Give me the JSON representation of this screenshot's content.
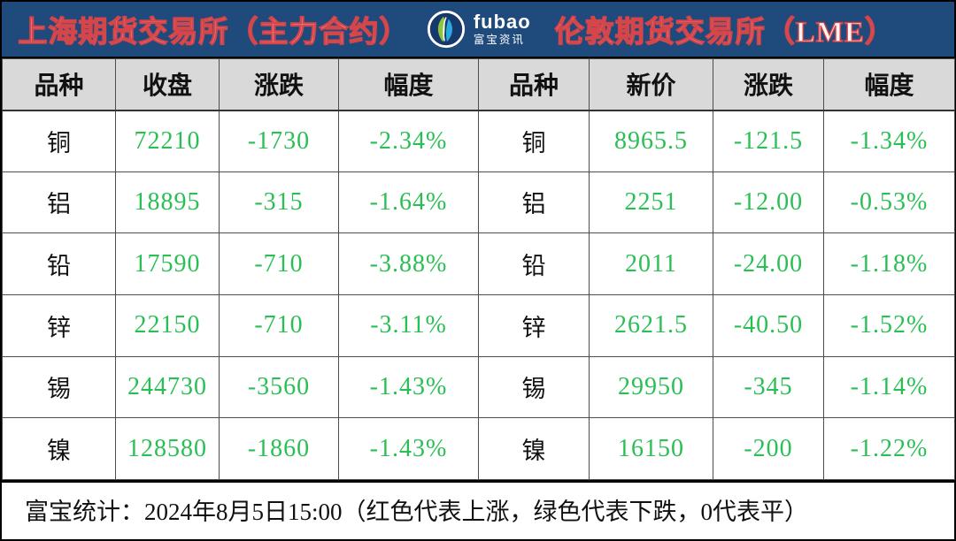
{
  "header": {
    "left_title": "上海期货交易所（主力合约）",
    "right_title": "伦敦期货交易所（LME）",
    "logo": {
      "icon": "fubao-leaf-circle-icon",
      "wordmark": "fubao",
      "subtitle": "富宝资讯"
    }
  },
  "table": {
    "left": {
      "columns": [
        "品种",
        "收盘",
        "涨跌",
        "幅度"
      ]
    },
    "right": {
      "columns": [
        "品种",
        "新价",
        "涨跌",
        "幅度"
      ]
    },
    "rows": [
      {
        "cells": [
          "铜",
          "72210",
          "-1730",
          "-2.34%",
          "铜",
          "8965.5",
          "-121.5",
          "-1.34%"
        ]
      },
      {
        "cells": [
          "铝",
          "18895",
          "-315",
          "-1.64%",
          "铝",
          "2251",
          "-12.00",
          "-0.53%"
        ]
      },
      {
        "cells": [
          "铅",
          "17590",
          "-710",
          "-3.88%",
          "铅",
          "2011",
          "-24.00",
          "-1.18%"
        ]
      },
      {
        "cells": [
          "锌",
          "22150",
          "-710",
          "-3.11%",
          "锌",
          "2621.5",
          "-40.50",
          "-1.52%"
        ]
      },
      {
        "cells": [
          "锡",
          "244730",
          "-3560",
          "-1.43%",
          "锡",
          "29950",
          "-345",
          "-1.14%"
        ]
      },
      {
        "cells": [
          "镍",
          "128580",
          "-1860",
          "-1.43%",
          "镍",
          "16150",
          "-200",
          "-1.22%"
        ]
      }
    ]
  },
  "footer": {
    "text": "富宝统计：2024年8月5日15:00（红色代表上涨，绿色代表下跌，0代表平）"
  },
  "colors": {
    "header_bar_blue": "#1f4a7c",
    "title_red": "#d5464b",
    "down_green": "#2abf54",
    "header_row_gray": "#d9d9d9",
    "grid_line": "#4d4d4d",
    "text_black": "#111111"
  }
}
